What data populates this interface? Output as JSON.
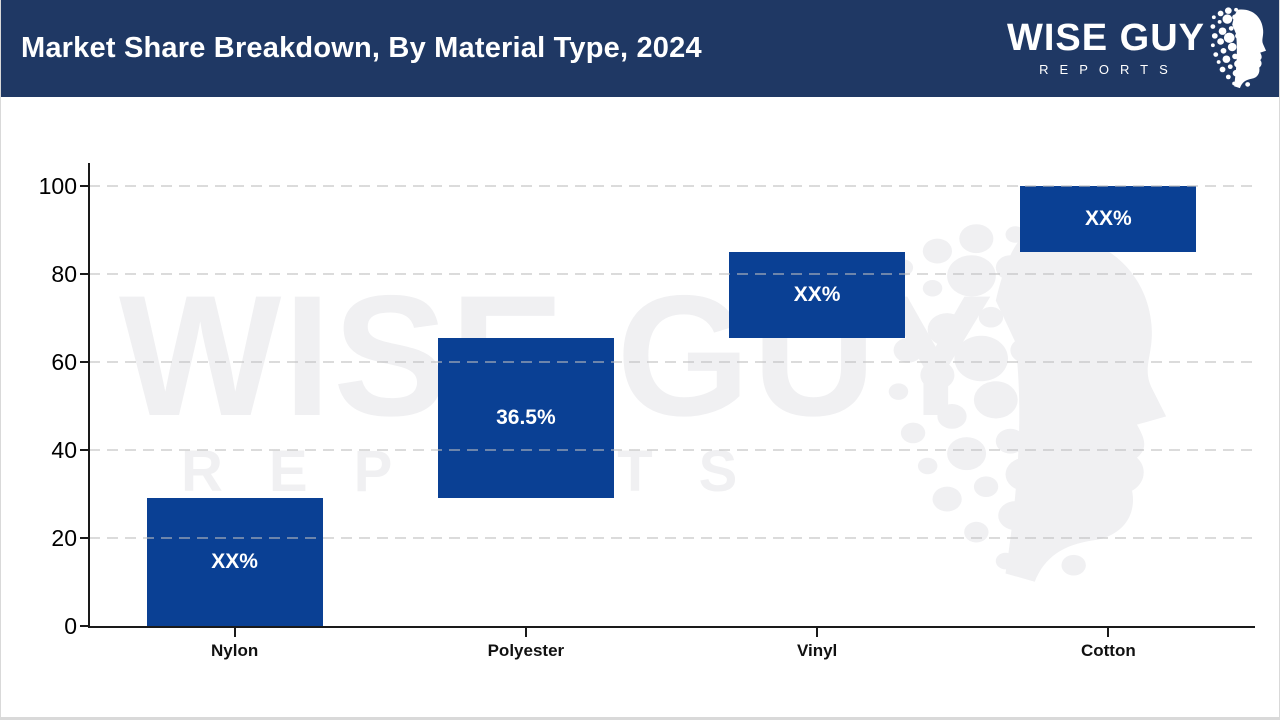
{
  "header": {
    "title": "Market Share Breakdown, By Material Type, 2024",
    "bg_color": "#1f3864"
  },
  "logo": {
    "name": "WISE GUY",
    "tagline": "REPORTS"
  },
  "watermark": {
    "line1": "WISE GUY",
    "line2": "REPORTS"
  },
  "chart_data": {
    "type": "bar",
    "subtype": "floating-waterfall",
    "title": "",
    "xlabel": "",
    "ylabel": "",
    "categories": [
      "Nylon",
      "Polyester",
      "Vinyl",
      "Cotton"
    ],
    "segments": [
      {
        "category": "Nylon",
        "start": 0,
        "end": 29,
        "value": 29,
        "label": "XX%"
      },
      {
        "category": "Polyester",
        "start": 29,
        "end": 65.5,
        "value": 36.5,
        "label": "36.5%"
      },
      {
        "category": "Vinyl",
        "start": 65.5,
        "end": 85,
        "value": 19.5,
        "label": "XX%"
      },
      {
        "category": "Cotton",
        "start": 85,
        "end": 100,
        "value": 15,
        "label": "XX%"
      }
    ],
    "yticks": [
      0,
      20,
      40,
      60,
      80,
      100
    ],
    "ylim": [
      0,
      105
    ],
    "grid": "dashed-horizontal-over-bars",
    "legend": "none",
    "bar_color": "#0a4094",
    "axis_color": "#1a1a1a",
    "grid_color": "#d8d8d8"
  }
}
